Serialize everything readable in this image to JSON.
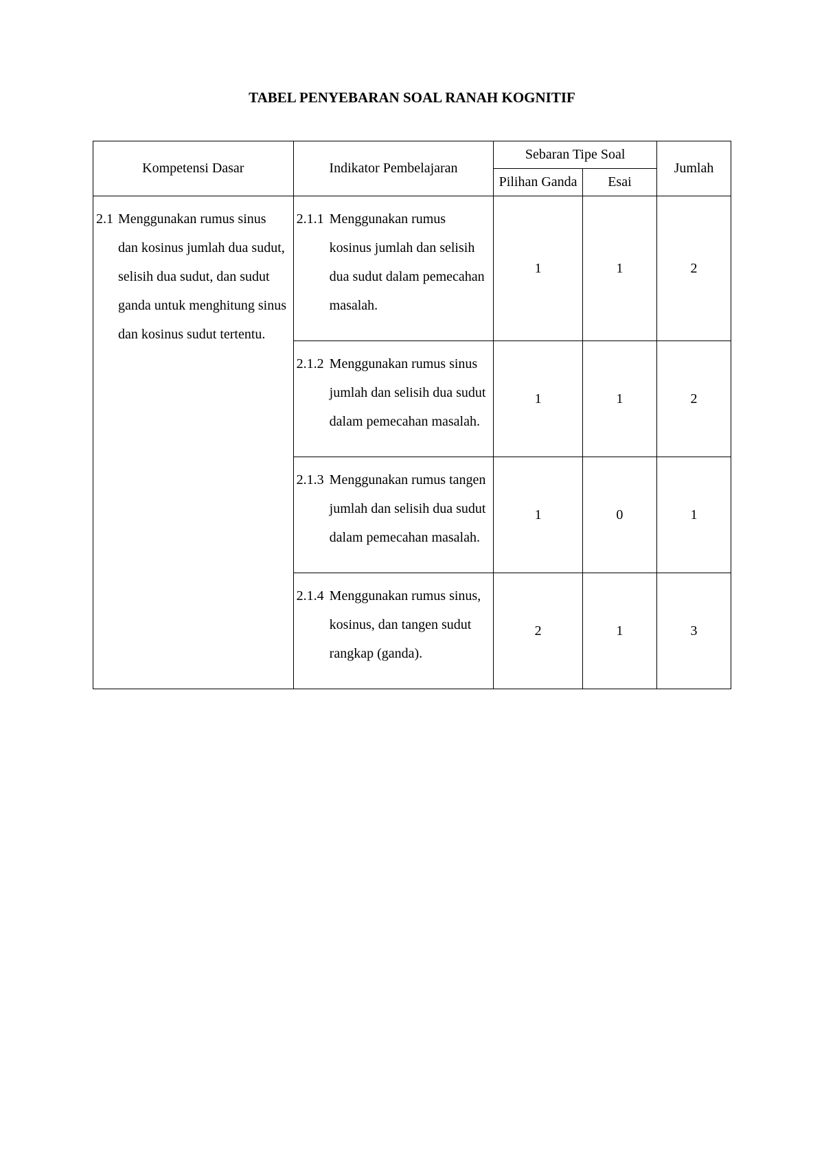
{
  "title": "TABEL PENYEBARAN SOAL RANAH KOGNITIF",
  "headers": {
    "kompetensi": "Kompetensi Dasar",
    "indikator": "Indikator Pembelajaran",
    "sebaran": "Sebaran Tipe Soal",
    "pilihan_ganda": "Pilihan Ganda",
    "esai": "Esai",
    "jumlah": "Jumlah"
  },
  "kd": {
    "num": "2.1",
    "text": "Menggunakan rumus sinus dan kosinus jumlah dua sudut, selisih dua sudut, dan sudut ganda untuk menghitung sinus dan kosinus sudut tertentu."
  },
  "rows": [
    {
      "ind_num": "2.1.1",
      "ind_text": "Menggunakan rumus kosinus jumlah dan selisih dua sudut dalam pemecahan masalah.",
      "pg": "1",
      "esai": "1",
      "jumlah": "2"
    },
    {
      "ind_num": "2.1.2",
      "ind_text": "Menggunakan rumus sinus jumlah dan selisih dua sudut dalam pemecahan masalah.",
      "pg": "1",
      "esai": "1",
      "jumlah": "2"
    },
    {
      "ind_num": "2.1.3",
      "ind_text": "Menggunakan rumus tangen jumlah dan selisih dua sudut dalam pemecahan masalah.",
      "pg": "1",
      "esai": "0",
      "jumlah": "1"
    },
    {
      "ind_num": "2.1.4",
      "ind_text": "Menggunakan rumus sinus, kosinus, dan tangen sudut rangkap (ganda).",
      "pg": "2",
      "esai": "1",
      "jumlah": "3"
    }
  ]
}
